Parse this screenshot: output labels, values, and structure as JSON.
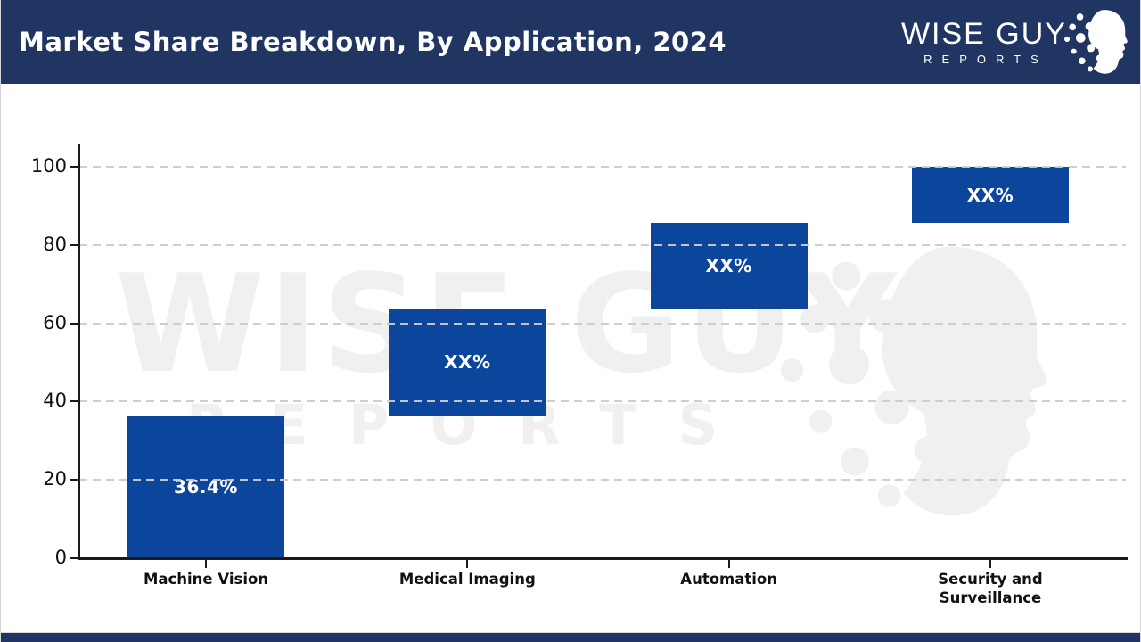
{
  "header": {
    "title": "Market Share Breakdown, By Application, 2024",
    "bg_color": "#203562",
    "logo": {
      "wordmark": "WISE GUY",
      "sub": "REPORTS"
    }
  },
  "watermark": {
    "wordmark": "WISE GUY",
    "sub": "REPORTS"
  },
  "footer": {
    "bg_color": "#203562"
  },
  "chart_data": {
    "type": "bar",
    "subtype": "floating-waterfall",
    "title": "Market Share Breakdown, By Application, 2024",
    "categories": [
      "Machine Vision",
      "Medical Imaging",
      "Automation",
      "Security and Surveillance"
    ],
    "bars": [
      {
        "category": "Machine Vision",
        "start": 0,
        "end": 36.4,
        "label": "36.4%"
      },
      {
        "category": "Medical Imaging",
        "start": 36.4,
        "end": 63.8,
        "label": "XX%"
      },
      {
        "category": "Automation",
        "start": 63.8,
        "end": 85.6,
        "label": "XX%"
      },
      {
        "category": "Security and Surveillance",
        "start": 85.6,
        "end": 100,
        "label": "XX%"
      }
    ],
    "yticks": [
      0,
      20,
      40,
      60,
      80,
      100
    ],
    "ylim": [
      0,
      100
    ],
    "grid": "horizontal-dashed",
    "legend": "none",
    "bar_color": "#0c459c",
    "bar_label_color": "#ffffff",
    "axis_color": "#1a1a1a",
    "gridline_color": "#cccccc"
  }
}
